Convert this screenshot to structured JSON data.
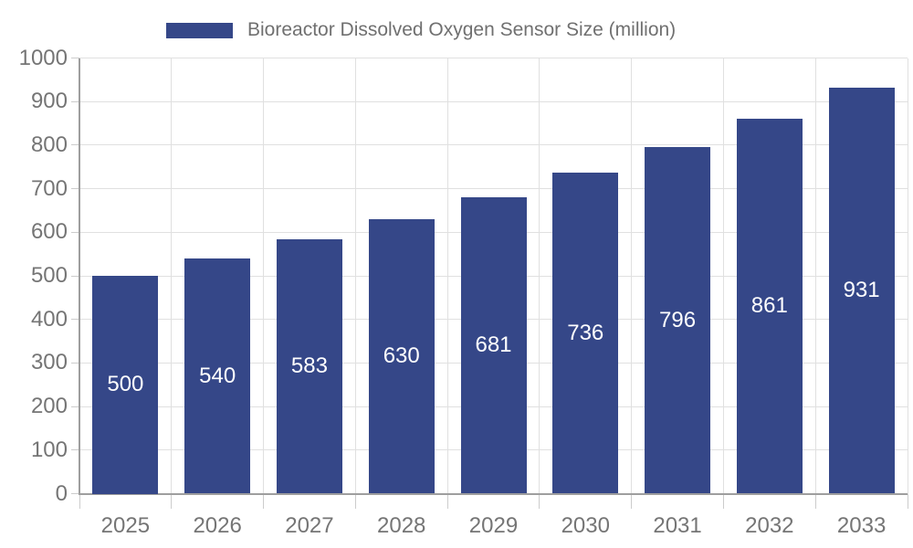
{
  "colors": {
    "bar": "#354788",
    "grid": "#e0e0e0",
    "axis": "#9e9e9e",
    "tick": "#cccccc",
    "tick_text": "#757575",
    "legend_text": "#707070",
    "value_label": "#ffffff",
    "background": "#ffffff"
  },
  "legend": {
    "label": "Bioreactor Dissolved Oxygen Sensor Size (million)"
  },
  "chart_data": {
    "type": "bar",
    "title": "Bioreactor Dissolved Oxygen Sensor Size (million)",
    "categories": [
      "2025",
      "2026",
      "2027",
      "2028",
      "2029",
      "2030",
      "2031",
      "2032",
      "2033"
    ],
    "values": [
      500,
      540,
      583,
      630,
      681,
      736,
      796,
      861,
      931
    ],
    "xlabel": "",
    "ylabel": "",
    "ylim": [
      0,
      1000
    ],
    "ytick_step": 100,
    "ytick_labels": [
      "0",
      "100",
      "200",
      "300",
      "400",
      "500",
      "600",
      "700",
      "800",
      "900",
      "1000"
    ],
    "grid": true,
    "legend_position": "top",
    "value_labels": "inside-center"
  }
}
